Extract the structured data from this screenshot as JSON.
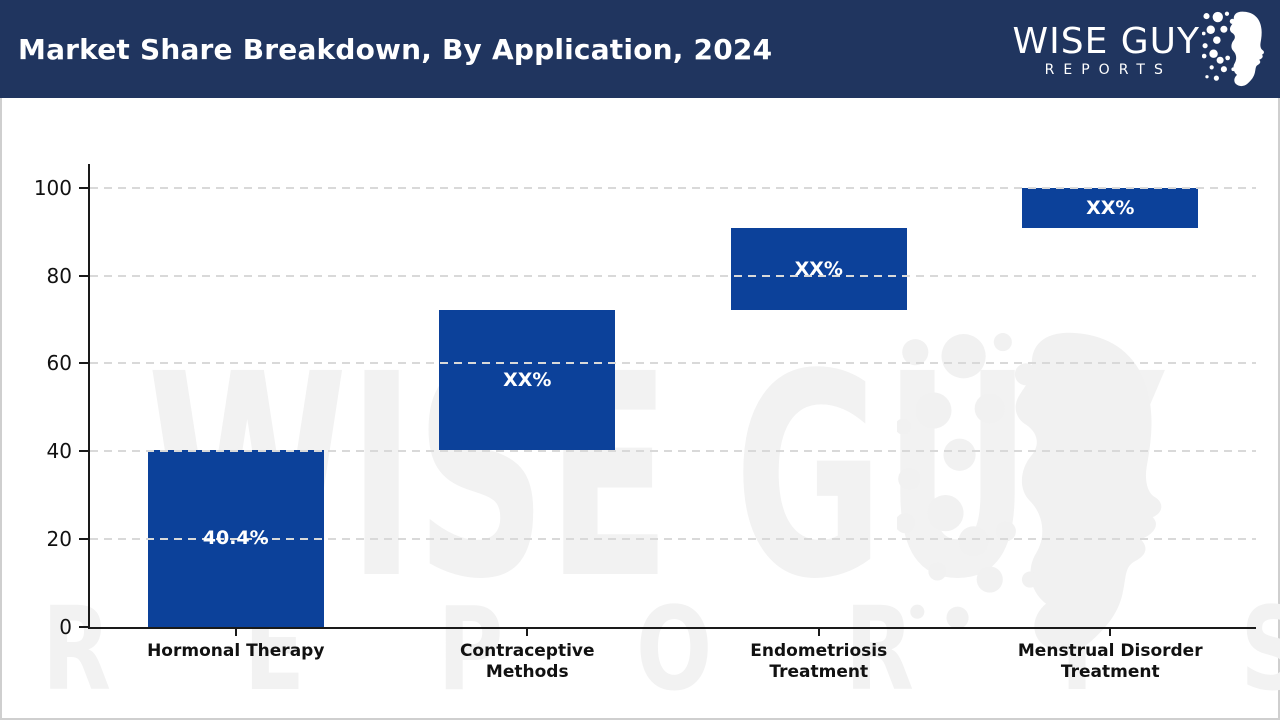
{
  "header": {
    "title": "Market Share Breakdown, By Application, 2024",
    "logo": {
      "line1": "WISE GUY",
      "line2": "REPORTS"
    }
  },
  "watermark": {
    "line1": "WISE GUY",
    "line2": "R E P O R T S"
  },
  "chart_data": {
    "type": "bar",
    "subtype": "waterfall",
    "title": "Market Share Breakdown, By Application, 2024",
    "categories": [
      [
        "Hormonal Therapy"
      ],
      [
        "Contraceptive",
        "Methods"
      ],
      [
        "Endometriosis",
        "Treatment"
      ],
      [
        "Menstrual Disorder",
        "Treatment"
      ]
    ],
    "bars": [
      {
        "label": "40.4%",
        "start": 0,
        "end": 40.4
      },
      {
        "label": "XX%",
        "start": 40.4,
        "end": 72.2
      },
      {
        "label": "XX%",
        "start": 72.2,
        "end": 90.9
      },
      {
        "label": "XX%",
        "start": 90.9,
        "end": 100
      }
    ],
    "yticks": [
      0,
      20,
      40,
      60,
      80,
      100
    ],
    "ylim": [
      0,
      105.4
    ],
    "grid": "horizontal-dashed",
    "legend": "none",
    "bar_color": "#0c419a",
    "bar_label_color": "#ffffff",
    "header_bg_color": "#20355f",
    "axis_color": "#1a1a1a",
    "gridline_color": "#d9d9d9",
    "watermark_color": "#f2f2f2"
  }
}
